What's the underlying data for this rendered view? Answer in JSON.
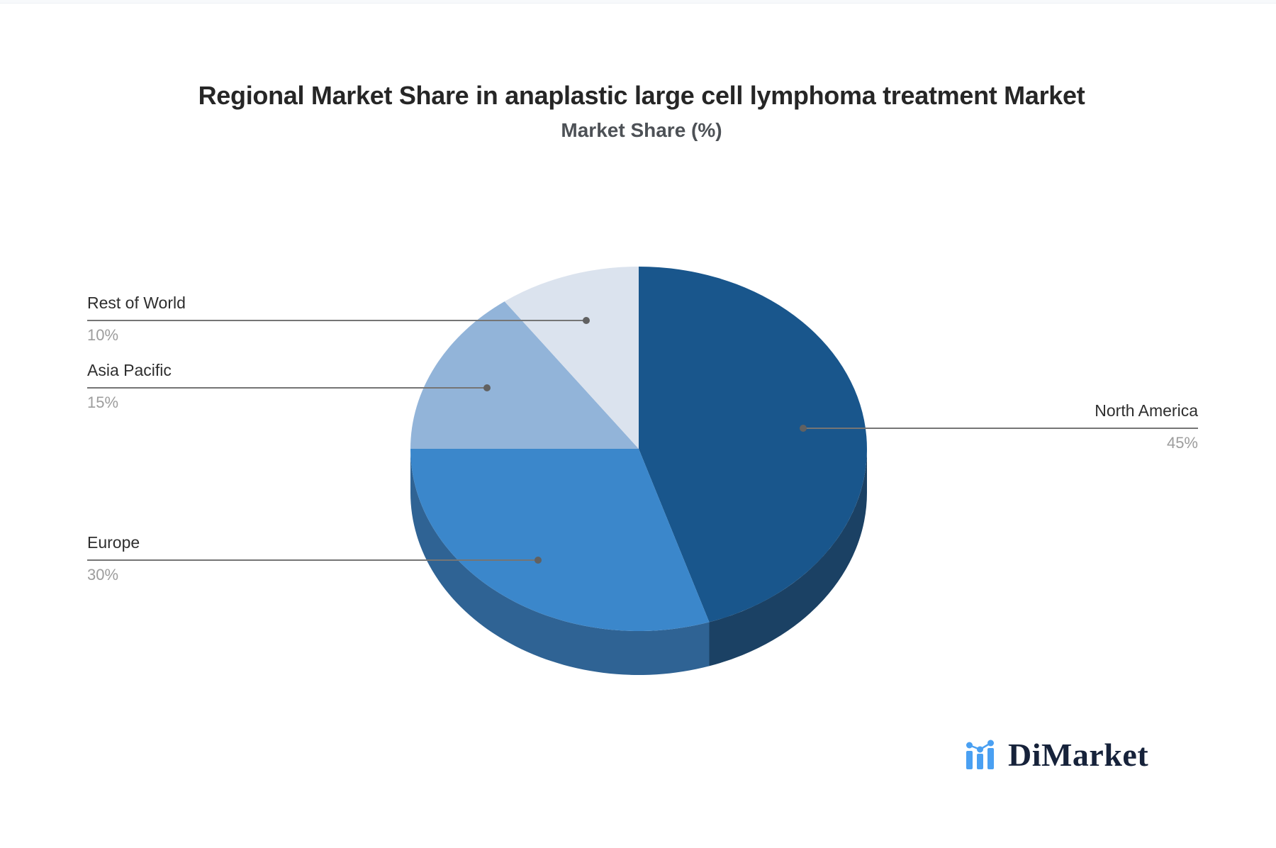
{
  "header": {
    "title": "Regional Market Share in anaplastic large cell lymphoma treatment Market",
    "subtitle": "Market Share (%)"
  },
  "chart_data": {
    "type": "pie",
    "title": "Regional Market Share in anaplastic large cell lymphoma treatment Market",
    "subtitle": "Market Share (%)",
    "unit": "%",
    "style": "3d-pie",
    "start_angle": "12 o'clock",
    "direction": "clockwise",
    "legend_position": "callout-leader-lines",
    "slices": [
      {
        "label": "North America",
        "value": 45,
        "percent_label": "45%",
        "color": "#19568C",
        "wall_color": "#1B4164"
      },
      {
        "label": "Europe",
        "value": 30,
        "percent_label": "30%",
        "color": "#3B87CB",
        "wall_color": "#2F6394"
      },
      {
        "label": "Asia Pacific",
        "value": 15,
        "percent_label": "15%",
        "color": "#92B4D9",
        "wall_color": "#7B9CC2"
      },
      {
        "label": "Rest of World",
        "value": 10,
        "percent_label": "10%",
        "color": "#DBE3EE",
        "wall_color": "#B9C4D6"
      }
    ],
    "leader_line_color": "#757575",
    "leader_dot_color": "#616161"
  },
  "logo": {
    "text": "DiMarket",
    "icon": "bar-chart-logo-icon",
    "text_color": "#16223a",
    "icon_color": "#4aa0f2"
  }
}
